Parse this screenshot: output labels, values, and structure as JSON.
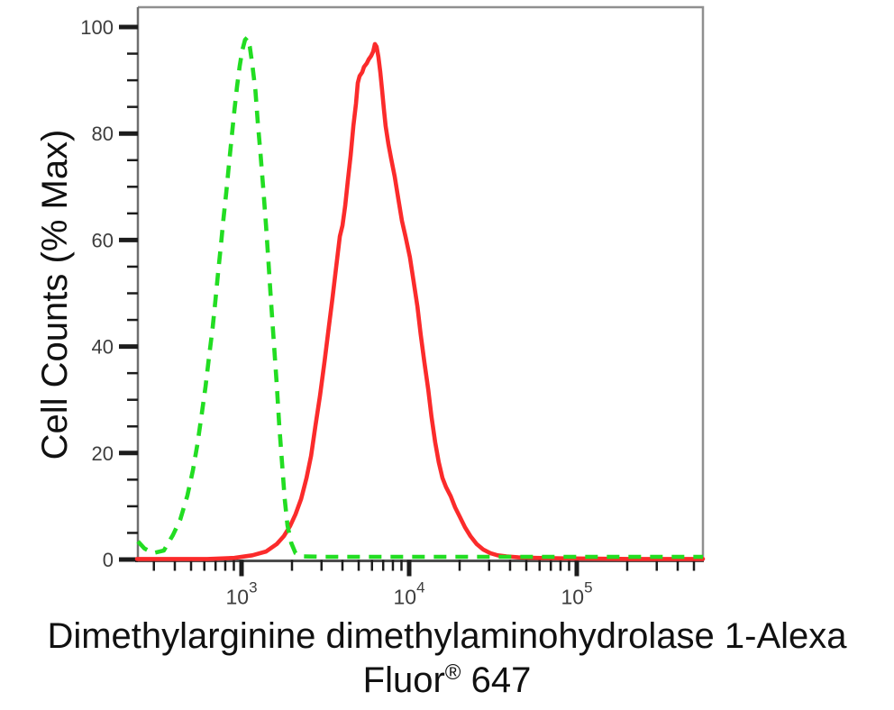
{
  "figure": {
    "y_axis_title": "Cell Counts (% Max)",
    "x_axis_title_line1": "Dimethylarginine dimethylaminohydrolase 1-Alexa",
    "x_axis_title_line2_pre": "Fluor",
    "x_axis_title_line2_sup": "®",
    "x_axis_title_line2_post": " 647"
  },
  "chart_data": {
    "type": "line",
    "subtype": "flow-cytometry-histogram-overlay",
    "title": "",
    "xlabel": "Dimethylarginine dimethylaminohydrolase 1-Alexa Fluor® 647",
    "ylabel": "Cell Counts (% Max)",
    "x_scale": "log10",
    "xlim": [
      241,
      566000
    ],
    "ylim": [
      0,
      104
    ],
    "grid": false,
    "legend": null,
    "x_major_ticks": [
      1000,
      10000,
      100000
    ],
    "x_tick_label_base": "10",
    "x_tick_exponents": [
      "3",
      "4",
      "5"
    ],
    "x_minor_mantissas": [
      2,
      3,
      4,
      5,
      6,
      7,
      8,
      9
    ],
    "y_ticks": [
      0,
      20,
      40,
      60,
      80,
      100
    ],
    "y_minor_step": 5,
    "axis_color": "#1c1c1c",
    "frame_color": "#8f8f8f",
    "series": [
      {
        "name": "red-solid-curve",
        "color": "#fb2b2b",
        "style": "solid",
        "points": [
          [
            238,
            0.1
          ],
          [
            625,
            0.1
          ],
          [
            906,
            0.3
          ],
          [
            1160,
            0.8
          ],
          [
            1400,
            1.5
          ],
          [
            1620,
            2.9
          ],
          [
            1790,
            4.4
          ],
          [
            1950,
            6.3
          ],
          [
            2100,
            8.5
          ],
          [
            2270,
            11.4
          ],
          [
            2440,
            15.3
          ],
          [
            2600,
            19.5
          ],
          [
            2760,
            25.1
          ],
          [
            2940,
            30.8
          ],
          [
            3130,
            37.3
          ],
          [
            3320,
            43.7
          ],
          [
            3490,
            49.2
          ],
          [
            3670,
            54.9
          ],
          [
            3860,
            60.7
          ],
          [
            4000,
            62.7
          ],
          [
            4150,
            66.4
          ],
          [
            4310,
            71.2
          ],
          [
            4480,
            75.9
          ],
          [
            4650,
            81.4
          ],
          [
            4820,
            85.6
          ],
          [
            4940,
            89.5
          ],
          [
            5060,
            90.8
          ],
          [
            5250,
            91.5
          ],
          [
            5380,
            92.5
          ],
          [
            5590,
            93.2
          ],
          [
            5730,
            93.9
          ],
          [
            5940,
            94.6
          ],
          [
            6100,
            95.4
          ],
          [
            6250,
            96.8
          ],
          [
            6400,
            96.3
          ],
          [
            6560,
            94.4
          ],
          [
            6730,
            91.5
          ],
          [
            6900,
            88.1
          ],
          [
            7060,
            84.7
          ],
          [
            7240,
            81.4
          ],
          [
            7520,
            78.0
          ],
          [
            7800,
            75.4
          ],
          [
            8200,
            71.9
          ],
          [
            8610,
            67.8
          ],
          [
            9060,
            63.6
          ],
          [
            9510,
            60.7
          ],
          [
            10100,
            56.8
          ],
          [
            10600,
            52.5
          ],
          [
            11200,
            47.5
          ],
          [
            11700,
            42.4
          ],
          [
            12300,
            37.3
          ],
          [
            13000,
            31.9
          ],
          [
            13600,
            26.8
          ],
          [
            14300,
            22.0
          ],
          [
            15000,
            18.3
          ],
          [
            15800,
            15.3
          ],
          [
            16600,
            13.6
          ],
          [
            17700,
            11.9
          ],
          [
            18800,
            9.8
          ],
          [
            20000,
            8.1
          ],
          [
            21500,
            6.1
          ],
          [
            23200,
            4.4
          ],
          [
            25300,
            2.9
          ],
          [
            27600,
            1.9
          ],
          [
            30500,
            1.2
          ],
          [
            33700,
            0.8
          ],
          [
            38100,
            0.6
          ],
          [
            44800,
            0.4
          ],
          [
            57300,
            0.3
          ],
          [
            88300,
            0.2
          ],
          [
            210000,
            0.1
          ],
          [
            566000,
            0.1
          ]
        ]
      },
      {
        "name": "green-dashed-curve",
        "color": "#22dd22",
        "style": "dashed",
        "points": [
          [
            241,
            3.4
          ],
          [
            263,
            2.1
          ],
          [
            297,
            1.2
          ],
          [
            344,
            1.7
          ],
          [
            390,
            4.6
          ],
          [
            431,
            7.5
          ],
          [
            475,
            12.0
          ],
          [
            513,
            16.8
          ],
          [
            546,
            21.7
          ],
          [
            580,
            27.5
          ],
          [
            610,
            32.5
          ],
          [
            640,
            38.0
          ],
          [
            673,
            43.6
          ],
          [
            698,
            48.6
          ],
          [
            724,
            53.7
          ],
          [
            752,
            58.8
          ],
          [
            780,
            63.9
          ],
          [
            811,
            69.0
          ],
          [
            841,
            74.1
          ],
          [
            873,
            79.2
          ],
          [
            906,
            84.2
          ],
          [
            940,
            88.8
          ],
          [
            975,
            92.7
          ],
          [
            1010,
            95.6
          ],
          [
            1050,
            97.6
          ],
          [
            1080,
            98.0
          ],
          [
            1120,
            96.3
          ],
          [
            1160,
            92.9
          ],
          [
            1210,
            88.1
          ],
          [
            1250,
            82.2
          ],
          [
            1300,
            75.9
          ],
          [
            1350,
            69.5
          ],
          [
            1400,
            62.7
          ],
          [
            1450,
            55.6
          ],
          [
            1500,
            48.3
          ],
          [
            1560,
            40.7
          ],
          [
            1620,
            33.1
          ],
          [
            1680,
            25.1
          ],
          [
            1750,
            17.6
          ],
          [
            1810,
            11.4
          ],
          [
            1880,
            6.4
          ],
          [
            1980,
            3.1
          ],
          [
            2100,
            1.2
          ],
          [
            2290,
            0.6
          ],
          [
            3130,
            0.5
          ],
          [
            566000,
            0.5
          ]
        ]
      }
    ]
  }
}
